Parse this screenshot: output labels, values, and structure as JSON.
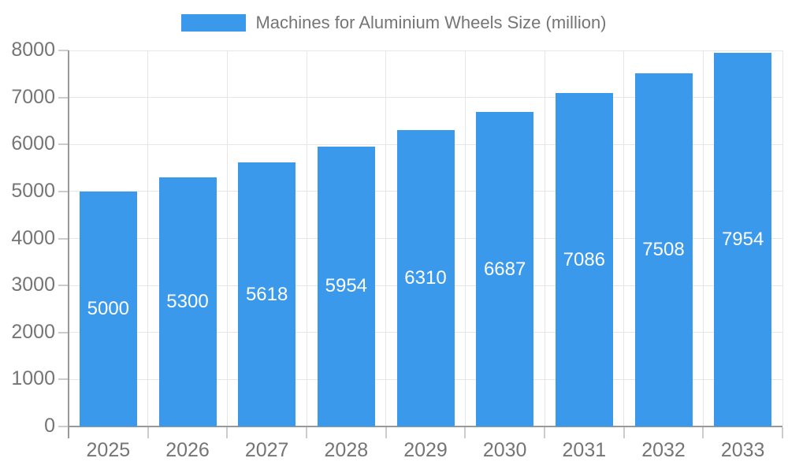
{
  "chart_data": {
    "type": "bar",
    "title": "Machines for Aluminium Wheels Size (million)",
    "categories": [
      "2025",
      "2026",
      "2027",
      "2028",
      "2029",
      "2030",
      "2031",
      "2032",
      "2033"
    ],
    "values": [
      5000,
      5300,
      5618,
      5954,
      6310,
      6687,
      7086,
      7508,
      7954
    ],
    "xlabel": "",
    "ylabel": "",
    "ylim": [
      0,
      8000
    ],
    "y_ticks": [
      0,
      1000,
      2000,
      3000,
      4000,
      5000,
      6000,
      7000,
      8000
    ],
    "grid": true,
    "legend_position": "top",
    "bar_labels_inside": true
  },
  "colors": {
    "bar": "#3B99EC",
    "grid": "#E6E6E6",
    "axis": "#999999",
    "tick": "#CCCCCC",
    "text": "#757575",
    "bar_label_text": "#FFFFFF",
    "background": "#FFFFFF"
  }
}
